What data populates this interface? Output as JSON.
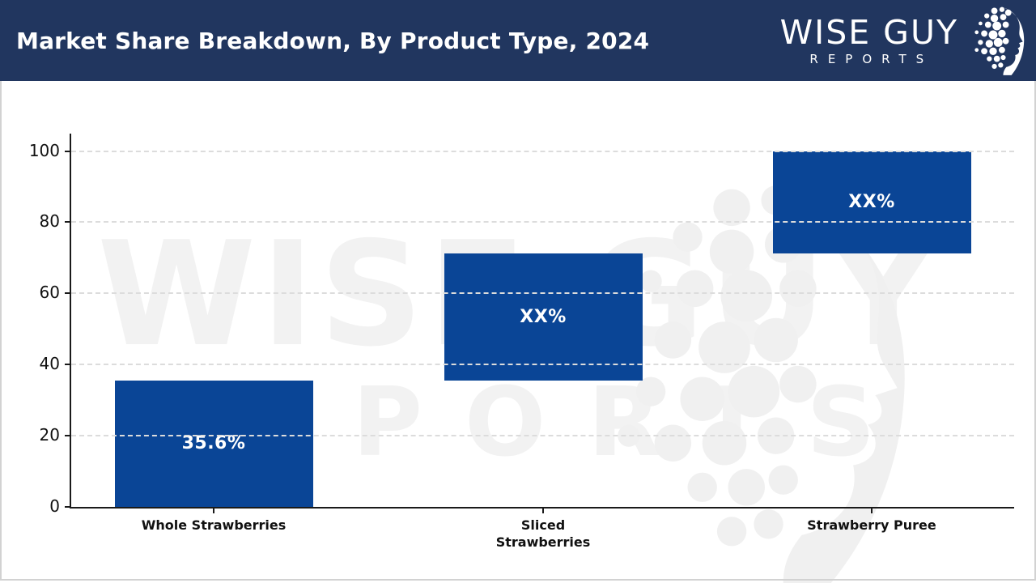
{
  "header": {
    "title": "Market Share Breakdown, By Product Type, 2024",
    "bg_color": "#21365f",
    "logo": {
      "wordmark": "WISE GUY",
      "subtext": "REPORTS"
    }
  },
  "watermark": {
    "line1": "WISE GUY",
    "line2": "REPORTS"
  },
  "chart_data": {
    "type": "bar",
    "subtype": "floating-waterfall",
    "title": "Market Share Breakdown, By Product Type, 2024",
    "categories": [
      "Whole Strawberries",
      "Sliced Strawberries",
      "Strawberry Puree"
    ],
    "category_label_lines": [
      [
        "Whole Strawberries"
      ],
      [
        "Sliced",
        "Strawberries"
      ],
      [
        "Strawberry Puree"
      ]
    ],
    "bars": [
      {
        "category": "Whole Strawberries",
        "start": 0,
        "end": 35.6,
        "label": "35.6%"
      },
      {
        "category": "Sliced Strawberries",
        "start": 35.6,
        "end": 71.2,
        "label": "XX%"
      },
      {
        "category": "Strawberry Puree",
        "start": 71.2,
        "end": 100,
        "label": "XX%"
      }
    ],
    "ylim": [
      0,
      105
    ],
    "yticks": [
      0,
      20,
      40,
      60,
      80,
      100
    ],
    "grid": "dashed-horizontal",
    "legend": "none",
    "bar_color": "#0a4596",
    "value_label_color": "#ffffff",
    "axis_color": "#1a1a1a",
    "grid_color": "#dcdcdc"
  }
}
